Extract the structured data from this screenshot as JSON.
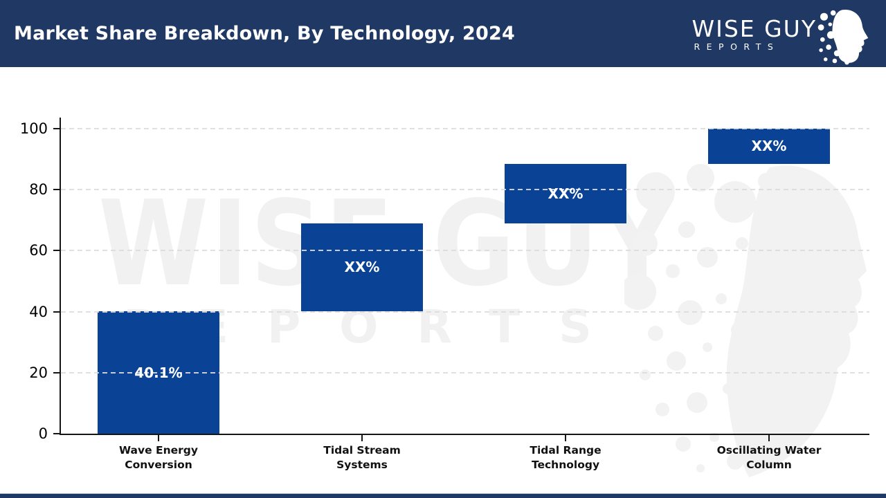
{
  "header": {
    "title": "Market Share Breakdown, By Technology, 2024",
    "logo": {
      "wordmark": "WISE GUY",
      "subtext": "REPORTS"
    }
  },
  "watermark": {
    "wordmark": "WISE GUY",
    "subtext": "REPORTS"
  },
  "chart_data": {
    "type": "bar",
    "variant": "waterfall",
    "title": "Market Share Breakdown, By Technology, 2024",
    "categories": [
      "Wave Energy\nConversion",
      "Tidal Stream\nSystems",
      "Tidal Range\nTechnology",
      "Oscillating Water\nColumn"
    ],
    "values": [
      40.1,
      28.9,
      19.5,
      11.5
    ],
    "cumulative_ends": [
      40.1,
      69.0,
      88.5,
      100.0
    ],
    "bar_labels": [
      "40.1%",
      "XX%",
      "XX%",
      "XX%"
    ],
    "xlabel": "",
    "ylabel": "",
    "ylim": [
      0,
      100
    ],
    "yticks": [
      0,
      20,
      40,
      60,
      80,
      100
    ],
    "grid": {
      "axis": "y",
      "style": "dashed",
      "color": "#dcdcdc"
    },
    "legend": "none",
    "colors": {
      "bar": "#0a4296",
      "bar_label": "#ffffff",
      "axis": "#151515",
      "tick_label": "#000000"
    }
  },
  "theme": {
    "header_bg": "#1f3864",
    "footer_bg": "#1f3864",
    "page_bg": "#ffffff",
    "watermark_color": "#f1f1f2"
  }
}
